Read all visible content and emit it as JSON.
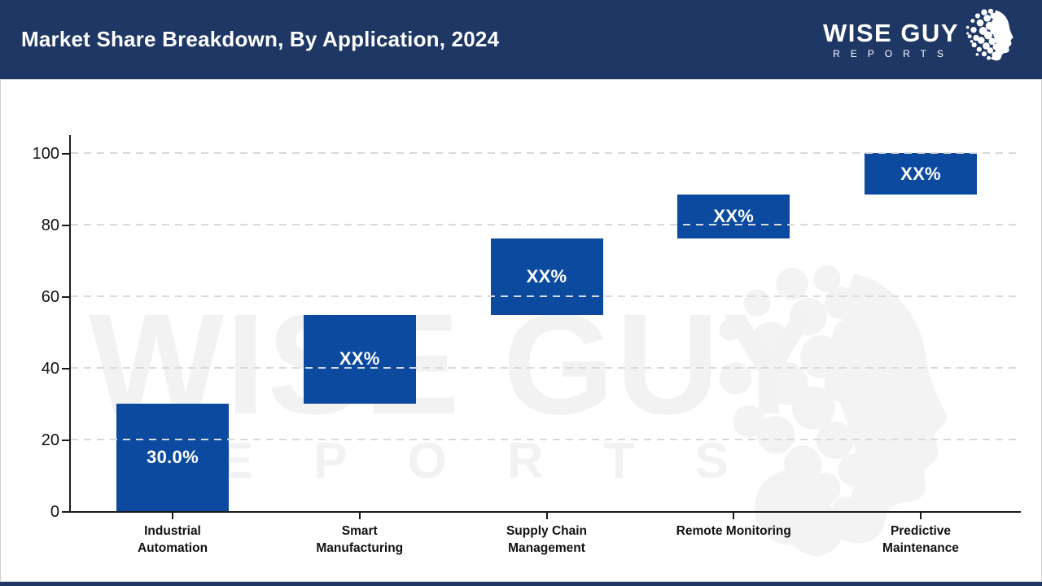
{
  "header": {
    "title": "Market Share Breakdown, By Application, 2024",
    "bg_color": "#1e3765",
    "logo": {
      "line1": "WISE GUY",
      "line2": "REPORTS"
    }
  },
  "watermark": {
    "line1": "WISE GUY",
    "line2": "REPORTS"
  },
  "chart_data": {
    "type": "bar",
    "subtype": "waterfall-floating-segments",
    "title": "Market Share Breakdown, By Application, 2024",
    "categories": [
      "Industrial Automation",
      "Smart Manufacturing",
      "Supply Chain Management",
      "Remote Monitoring",
      "Predictive Maintenance"
    ],
    "segments": [
      {
        "category": "Industrial Automation",
        "label_lines": [
          "Industrial",
          "Automation"
        ],
        "start": 0,
        "end": 30,
        "value_label": "30.0%"
      },
      {
        "category": "Smart Manufacturing",
        "label_lines": [
          "Smart",
          "Manufacturing"
        ],
        "start": 30,
        "end": 54.8,
        "value_label": "XX%"
      },
      {
        "category": "Supply Chain Management",
        "label_lines": [
          "Supply Chain",
          "Management"
        ],
        "start": 54.8,
        "end": 76.1,
        "value_label": "XX%"
      },
      {
        "category": "Remote Monitoring",
        "label_lines": [
          "Remote Monitoring"
        ],
        "start": 76.1,
        "end": 88.4,
        "value_label": "XX%"
      },
      {
        "category": "Predictive Maintenance",
        "label_lines": [
          "Predictive",
          "Maintenance"
        ],
        "start": 88.4,
        "end": 100,
        "value_label": "XX%"
      }
    ],
    "y_ticks": [
      0,
      20,
      40,
      60,
      80,
      100
    ],
    "ylim": [
      0,
      105
    ],
    "xlabel": "",
    "ylabel": "",
    "bar_color": "#0b4a9f",
    "grid": "horizontal-dashed",
    "legend": "none"
  }
}
